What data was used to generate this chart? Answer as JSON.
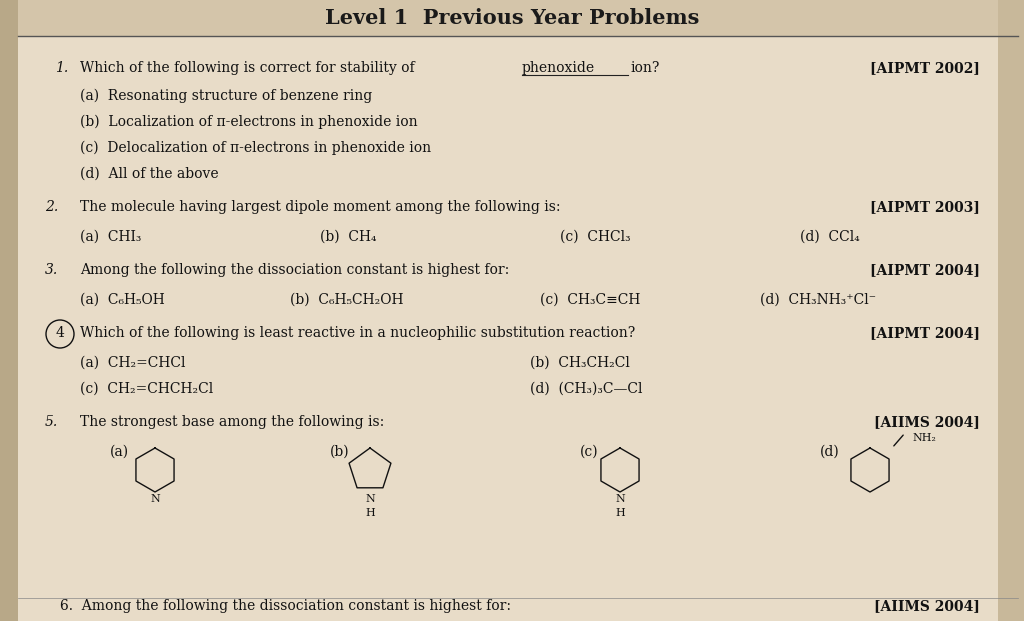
{
  "background_color": "#d4c9b0",
  "page_background": "#e8dcc8",
  "title": "Level 1  Previous Year Problems",
  "title_color": "#1a1a1a",
  "content_background": "#e8dcc8",
  "questions": [
    {
      "num": "1.",
      "text": "Which of the following is correct for stability of phenoxide ion?",
      "tag": "[AIPMT 2002]",
      "options": [
        "(a)  Resonating structure of benzene ring",
        "(b)  Localization of π-electrons in phenoxide ion",
        "(c)  Delocalization of π-electrons in phenoxide ion",
        "(d)  All of the above"
      ]
    },
    {
      "num": "2.",
      "text": "The molecule having largest dipole moment among the following is:",
      "tag": "[AIPMT 2003]",
      "options_inline": [
        "(a)  CHI₃",
        "(b)  CH₄",
        "(c)  CHCl₃",
        "(d)  CCl₄"
      ]
    },
    {
      "num": "3.",
      "text": "Among the following the dissociation constant is highest for:",
      "tag": "[AIPMT 2004]",
      "options_inline": [
        "(a)  C₆H₅OH",
        "(b)  C₆H₅CH₂OH",
        "(c)  CH₃C≡CH",
        "(d)  CH₃NH₃⁺Cl⁻"
      ]
    },
    {
      "num": "4.",
      "text": "Which of the following is least reactive in a nucleophilic substitution reaction?",
      "tag": "[AIPMT 2004]",
      "options_2col": [
        "(a)  CH₂=CHCl",
        "(b)  CH₃CH₂Cl",
        "(c)  CH₂=CHCH₂Cl",
        "(d)  (CH₃)₃C—Cl"
      ]
    },
    {
      "num": "5.",
      "text": "The strongest base among the following is:",
      "tag": "[AIIMS 2004]"
    }
  ],
  "footer_text": "6.  Among the following the dissociation constant is highest for:",
  "footer_tag": "[AIIMS 2004]"
}
